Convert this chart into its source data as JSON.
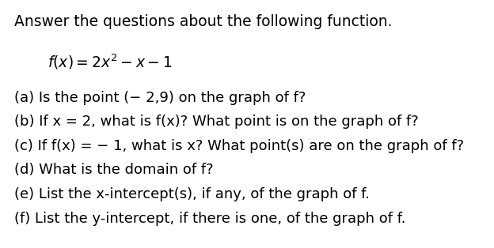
{
  "background_color": "#ffffff",
  "title_text": "Answer the questions about the following function.",
  "title_fontsize": 13.5,
  "title_fontweight": "normal",
  "function_fontsize": 13.5,
  "function_fontweight": "normal",
  "questions": [
    "(a) Is the point (− 2,9) on the graph of f?",
    "(b) If x = 2, what is f(x)? What point is on the graph of f?",
    "(c) If f(x) = − 1, what is x? What point(s) are on the graph of f?",
    "(d) What is the domain of f?",
    "(e) List the x-intercept(s), if any, of the graph of f.",
    "(f) List the y-intercept, if there is one, of the graph of f."
  ],
  "questions_fontsize": 13.0,
  "questions_fontweight": "normal"
}
